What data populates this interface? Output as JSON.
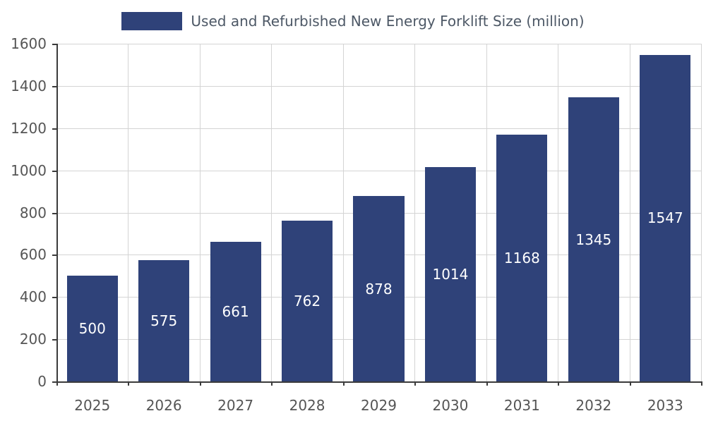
{
  "legend": {
    "label": "Used and Refurbished New Energy Forklift Size (million)"
  },
  "colors": {
    "bar": "#2F4279",
    "grid": "#d4d4d4",
    "axis": "#3b3b3b",
    "tick_label": "#555555",
    "value_label": "#ffffff",
    "legend_text": "#4d5866"
  },
  "chart_data": {
    "type": "bar",
    "title": "Used and Refurbished New Energy Forklift Size (million)",
    "categories": [
      "2025",
      "2026",
      "2027",
      "2028",
      "2029",
      "2030",
      "2031",
      "2032",
      "2033"
    ],
    "values": [
      500,
      575,
      661,
      762,
      878,
      1014,
      1168,
      1345,
      1547
    ],
    "xlabel": "",
    "ylabel": "",
    "ylim": [
      0,
      1600
    ],
    "ytick_step": 200,
    "yticks": [
      0,
      200,
      400,
      600,
      800,
      1000,
      1200,
      1400,
      1600
    ],
    "grid": true,
    "legend_position": "top",
    "bar_labels": "inside-center"
  }
}
